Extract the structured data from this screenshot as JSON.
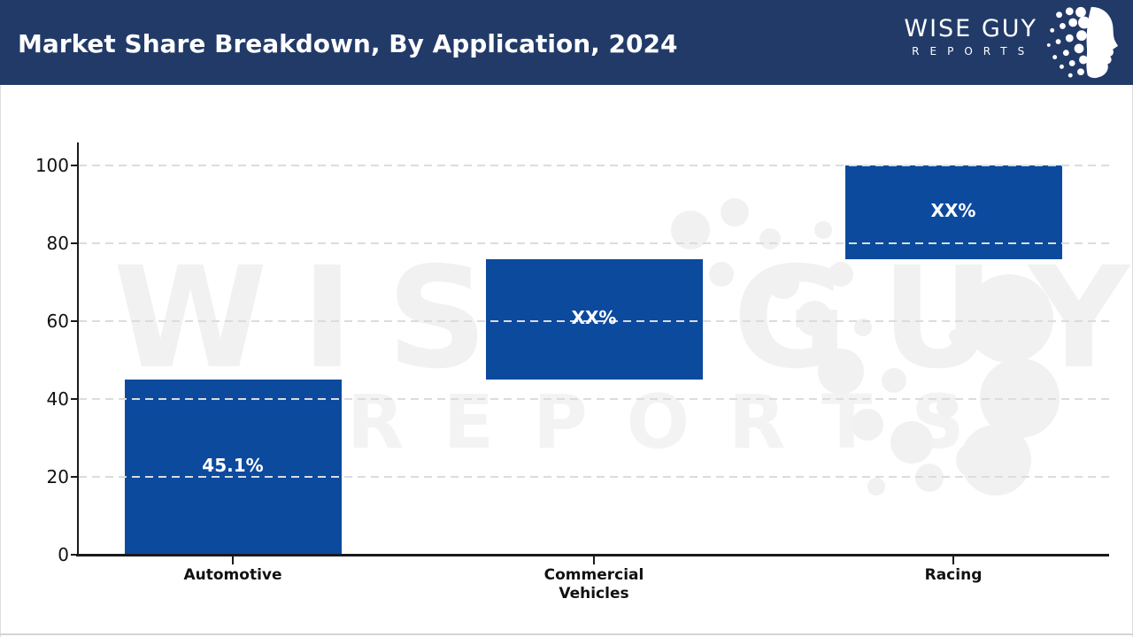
{
  "header": {
    "title": "Market Share Breakdown, By Application, 2024",
    "bg_color": "#223A68",
    "logo": {
      "wordmark": "WISE GUY",
      "subtext": "REPORTS"
    }
  },
  "watermark": {
    "line1": "WISE GUY",
    "line2": "REPORTS"
  },
  "chart_data": {
    "type": "bar",
    "subtype": "waterfall",
    "title": "Market Share Breakdown, By Application, 2024",
    "xlabel": "",
    "ylabel": "",
    "categories": [
      "Automotive",
      "Commercial Vehicles",
      "Racing"
    ],
    "segments": [
      {
        "category": "Automotive",
        "start": 0,
        "end": 45.1,
        "label": "45.1%"
      },
      {
        "category": "Commercial Vehicles",
        "start": 45.1,
        "end": 76.0,
        "label": "XX%"
      },
      {
        "category": "Racing",
        "start": 76.0,
        "end": 100.0,
        "label": "XX%"
      }
    ],
    "yticks": [
      0,
      20,
      40,
      60,
      80,
      100
    ],
    "ylim": [
      0,
      106
    ],
    "grid": {
      "horizontal_dashed": true
    },
    "legend": "none",
    "bar_color": "#0C4A9E",
    "bar_label_color": "#FFFFFF",
    "axis_color": "#1A1A1A"
  }
}
